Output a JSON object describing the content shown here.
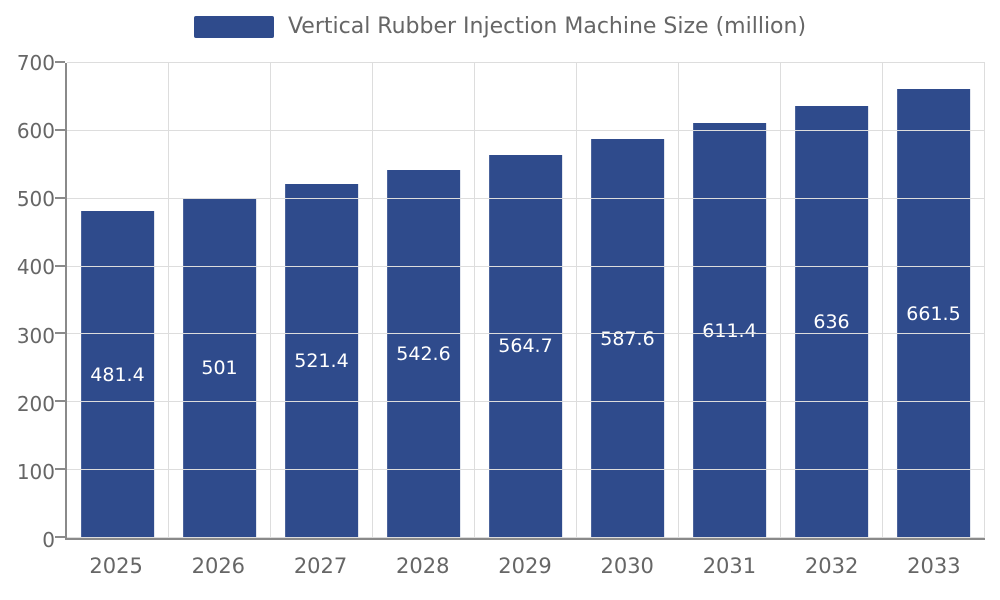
{
  "chart_data": {
    "type": "bar",
    "title": "Vertical Rubber Injection Machine Size (million)",
    "categories": [
      "2025",
      "2026",
      "2027",
      "2028",
      "2029",
      "2030",
      "2031",
      "2032",
      "2033"
    ],
    "values": [
      481.4,
      501,
      521.4,
      542.6,
      564.7,
      587.6,
      611.4,
      636,
      661.5
    ],
    "ylim": [
      0,
      700
    ],
    "yticks": [
      0,
      100,
      200,
      300,
      400,
      500,
      600,
      700
    ],
    "grid": true,
    "legend_position": "top",
    "bar_color": "#2F4B8C",
    "value_label_color": "#FFFFFF",
    "axis_text_color": "#666666",
    "gridline_color": "#DDDDDD",
    "axis_line_color": "#8A8A8A"
  }
}
